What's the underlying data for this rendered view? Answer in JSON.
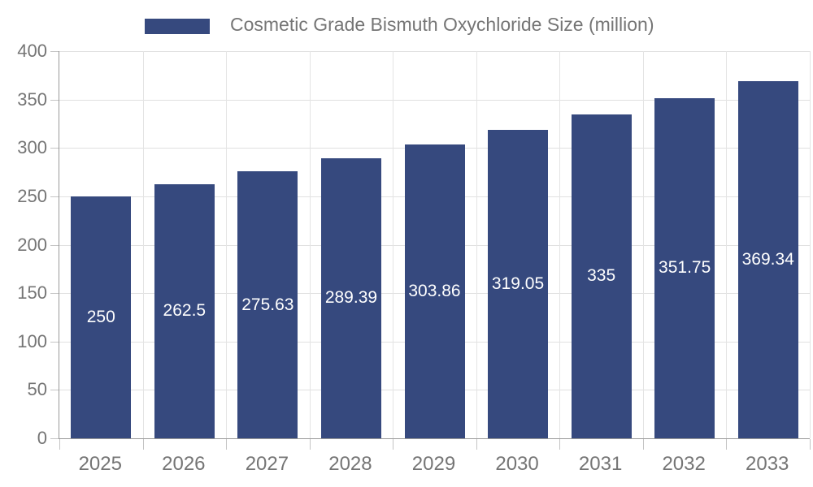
{
  "chart_data": {
    "type": "bar",
    "title": "Cosmetic Grade Bismuth Oxychloride Size (million)",
    "legend_label": "Cosmetic Grade Bismuth Oxychloride Size (million)",
    "legend_position": "top",
    "categories": [
      "2025",
      "2026",
      "2027",
      "2028",
      "2029",
      "2030",
      "2031",
      "2032",
      "2033"
    ],
    "values": [
      250,
      262.5,
      275.63,
      289.39,
      303.86,
      319.05,
      335,
      351.75,
      369.34
    ],
    "value_labels": [
      "250",
      "262.5",
      "275.63",
      "289.39",
      "303.86",
      "319.05",
      "335",
      "351.75",
      "369.34"
    ],
    "xlabel": "",
    "ylabel": "",
    "ylim": [
      0,
      400
    ],
    "yticks": [
      0,
      50,
      100,
      150,
      200,
      250,
      300,
      350,
      400
    ],
    "grid": true,
    "colors": {
      "bar": "#36497E",
      "bar_value_text": "#ffffff",
      "axis_text": "#757575",
      "gridline": "#e0e0e0",
      "axis_line": "#999999",
      "background": "#ffffff"
    }
  }
}
